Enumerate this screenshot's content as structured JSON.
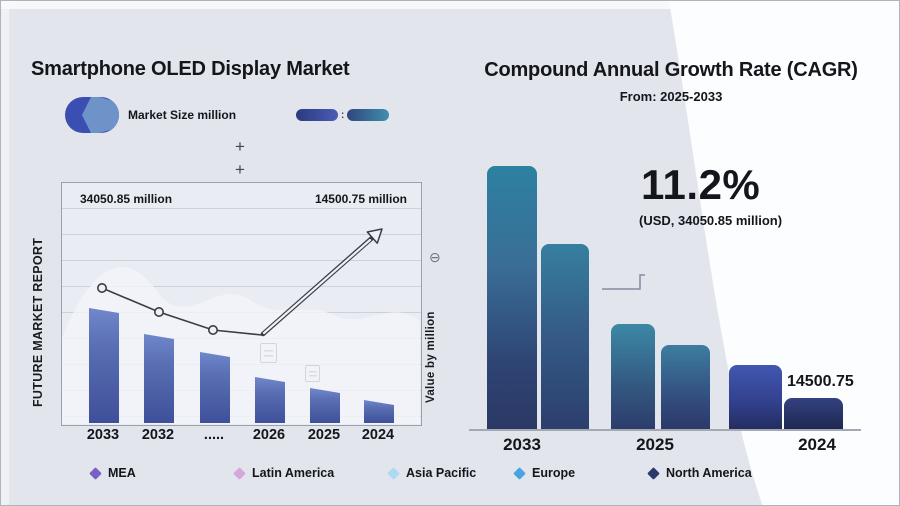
{
  "header_left": {
    "title": "Smartphone OLED Display Market",
    "market_size_label": "Market Size million",
    "pill_separator": ":"
  },
  "header_right": {
    "title": "Compound Annual Growth Rate (CAGR)",
    "subtitle": "From: 2025-2033"
  },
  "decor": {
    "plus_mark": "+",
    "minus_icon": "⊖"
  },
  "left_chart": {
    "start_value": "34050.85 million",
    "end_value": "14500.75 million",
    "side_label": "FUTURE MARKET REPORT",
    "value_axis_label": "Value by million"
  },
  "right_chart": {
    "cagr_value": "11.2%",
    "cagr_detail": "(USD, 34050.85 million)",
    "callout_value": "14500.75"
  },
  "legend": {
    "items": [
      {
        "label": "MEA",
        "color": "#7a5fc7"
      },
      {
        "label": "Latin America",
        "color": "#d4a8dc"
      },
      {
        "label": "Asia Pacific",
        "color": "#abdaf3"
      },
      {
        "label": "Europe",
        "color": "#4aa2e4"
      },
      {
        "label": "North America",
        "color": "#2c3a6b"
      }
    ]
  },
  "colors": {
    "background": "#e2e5ec",
    "swoosh_white": "#fcfdfe",
    "left_bar_top": "#7187cb",
    "left_bar_bottom": "#3e5099",
    "right_teal_top": "#2d81a1",
    "right_navy_bottom": "#1f2750",
    "right_blue_top": "#4257b0",
    "text": "#14161c"
  },
  "chart_data": [
    {
      "id": "market-size-by-year",
      "type": "bar",
      "title": "Smartphone OLED Display Market",
      "subtitle": "Market Size million",
      "ylabel": "Value by million",
      "categories": [
        "2033",
        "2032",
        ".....",
        "2026",
        "2025",
        "2024"
      ],
      "series": [
        {
          "name": "Market Size (USD million)",
          "values": [
            34050.85,
            29500,
            25500,
            20500,
            17200,
            14500.75
          ],
          "values_are_estimates": true,
          "known_values": {
            "2033": 34050.85,
            "2024": 14500.75
          }
        }
      ],
      "annotations": [
        "34050.85 million",
        "14500.75 million"
      ],
      "extras": "declining trend line with 3 circular markers, ending in an upward outlined arrow toward the 2033 value; years descend left-to-right",
      "grid": true,
      "legend_position": "none"
    },
    {
      "id": "cagr-paired-bars",
      "type": "bar",
      "title": "Compound Annual Growth Rate (CAGR)",
      "subtitle": "From: 2025-2033",
      "categories": [
        "2033",
        "2025",
        "2024"
      ],
      "series": [
        {
          "name": "bar-a",
          "values": [
            34050.85,
            17500,
            15500
          ],
          "values_are_estimates": true
        },
        {
          "name": "bar-b",
          "values": [
            26500,
            15000,
            14500.75
          ],
          "values_are_estimates": true
        }
      ],
      "annotations": [
        "11.2%",
        "(USD, 34050.85 million)",
        "14500.75"
      ],
      "grid": false,
      "legend_position": "bottom",
      "legend_entries": [
        "MEA",
        "Latin America",
        "Asia Pacific",
        "Europe",
        "North America"
      ]
    }
  ]
}
